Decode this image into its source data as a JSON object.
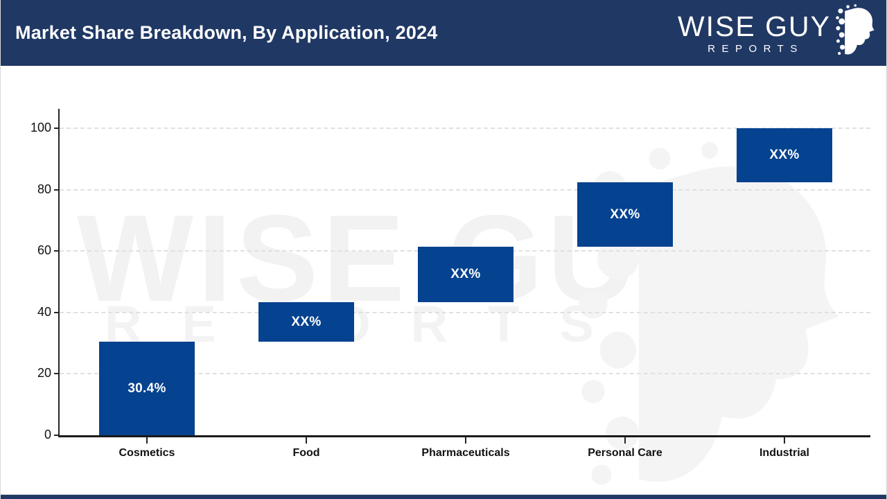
{
  "header": {
    "title": "Market Share Breakdown, By Application, 2024",
    "background_color": "#203864",
    "logo": {
      "line1": "WISE GUY",
      "line2": "REPORTS",
      "icon": "dotted-head-profile-icon"
    }
  },
  "watermark": {
    "line1": "WISE GUY",
    "line2": "REPORTS",
    "icon": "dotted-head-profile-icon"
  },
  "chart_data": {
    "type": "bar",
    "subtype": "floating-waterfall",
    "title": "Market Share Breakdown, By Application, 2024",
    "categories": [
      "Cosmetics",
      "Food",
      "Pharmaceuticals",
      "Personal Care",
      "Industrial"
    ],
    "segments": [
      {
        "category": "Cosmetics",
        "from": 0,
        "to": 30.4,
        "label": "30.4%"
      },
      {
        "category": "Food",
        "from": 30.4,
        "to": 43.4,
        "label": "XX%"
      },
      {
        "category": "Pharmaceuticals",
        "from": 43.4,
        "to": 61.4,
        "label": "XX%"
      },
      {
        "category": "Personal Care",
        "from": 61.4,
        "to": 82.3,
        "label": "XX%"
      },
      {
        "category": "Industrial",
        "from": 82.3,
        "to": 100,
        "label": "XX%"
      }
    ],
    "xlabel": "",
    "ylabel": "",
    "ylim": [
      0,
      100
    ],
    "yticks": [
      0,
      20,
      40,
      60,
      80,
      100
    ],
    "grid": "horizontal-dashed",
    "legend_position": "none",
    "bar_color": "#05428F",
    "bar_label_color": "#ffffff",
    "axis_color": "#262626",
    "gridline_color": "#e0e0e0"
  }
}
